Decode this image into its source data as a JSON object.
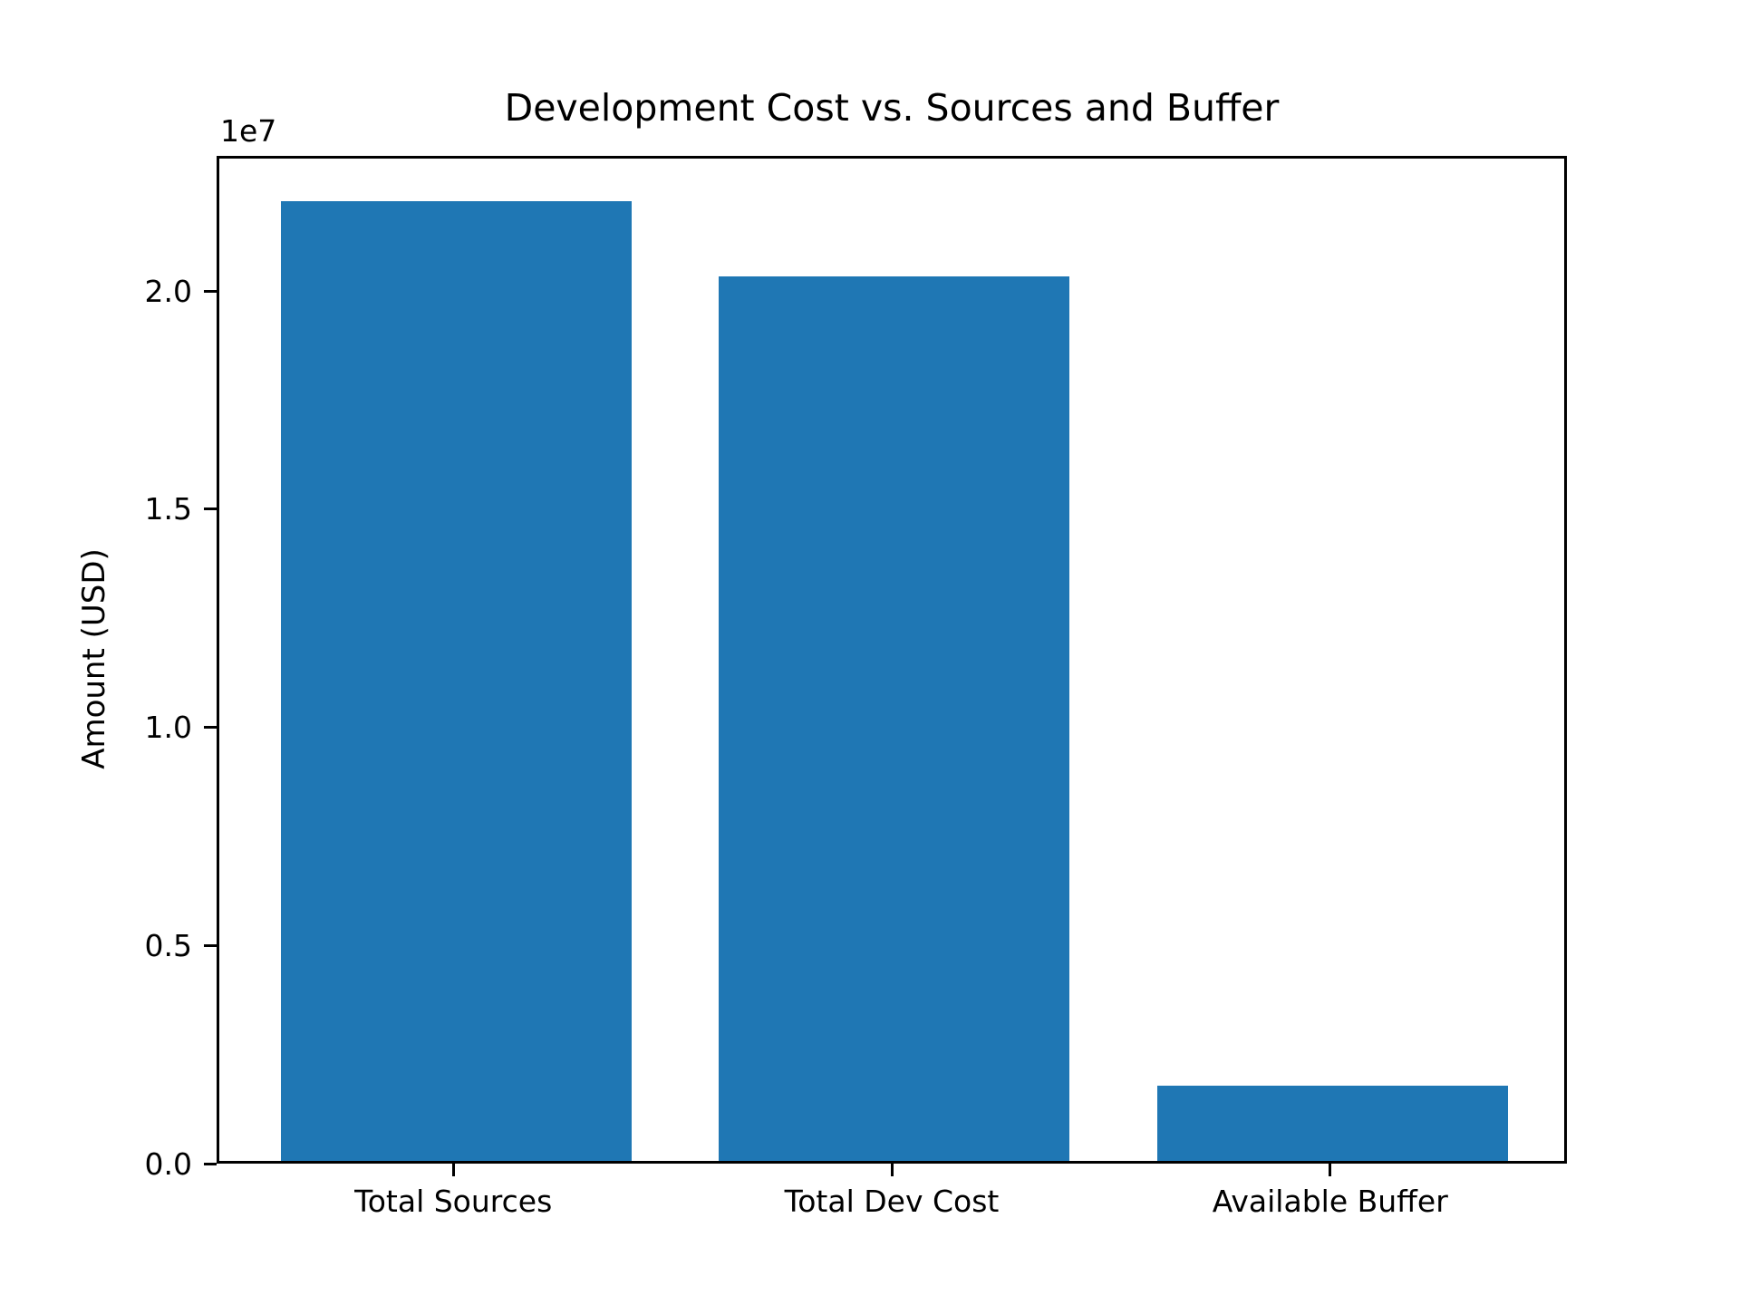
{
  "figure": {
    "background_color": "#ffffff",
    "text_color": "#000000"
  },
  "chart_data": {
    "type": "bar",
    "title": "Development Cost vs. Sources and Buffer",
    "xlabel": "",
    "ylabel": "Amount (USD)",
    "y_offset_label": "1e7",
    "categories": [
      "Total Sources",
      "Total Dev Cost",
      "Available Buffer"
    ],
    "values": [
      22000000,
      20270000,
      1730000
    ],
    "bar_color": "#1f77b4",
    "ylim": [
      0,
      23100000
    ],
    "yticks": [
      0,
      5000000,
      10000000,
      15000000,
      20000000
    ],
    "ytick_labels": [
      "0.0",
      "0.5",
      "1.0",
      "1.5",
      "2.0"
    ],
    "xlim": [
      -0.54,
      2.54
    ],
    "bar_width": 0.8,
    "grid": false,
    "legend_position": "none"
  }
}
